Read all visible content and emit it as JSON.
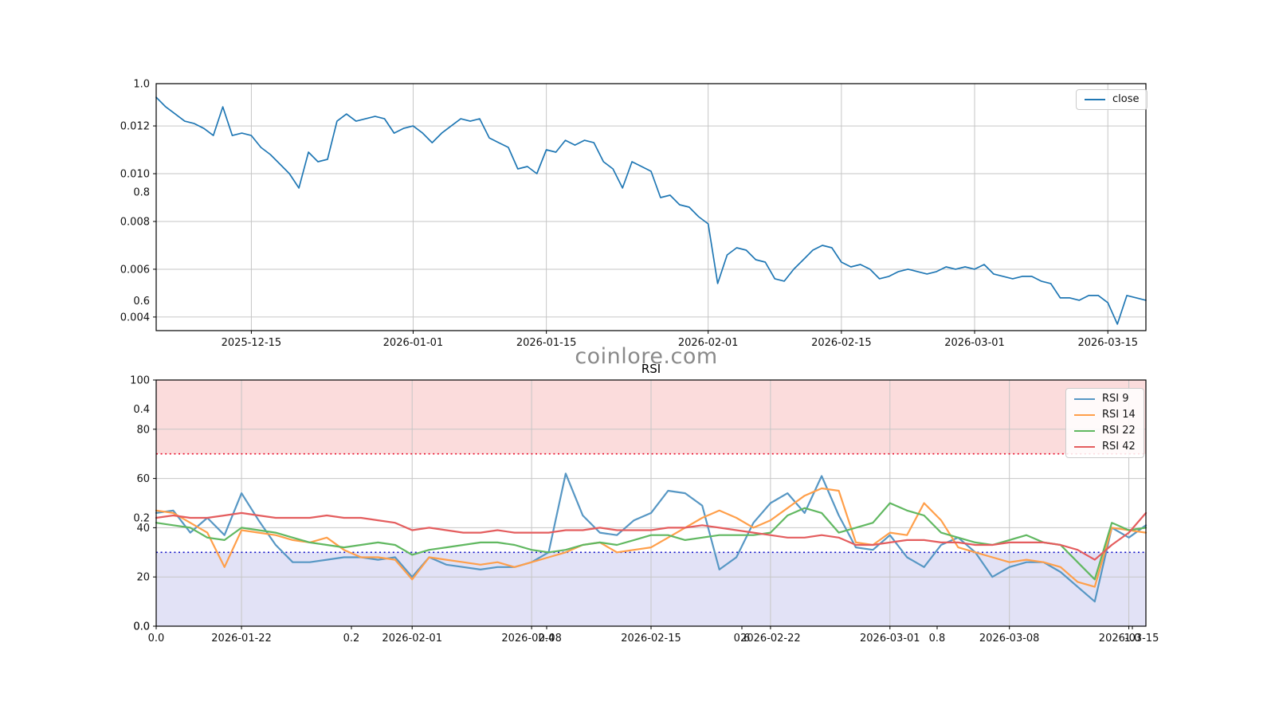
{
  "figure": {
    "watermark": "coinlore.com",
    "background": "#ffffff"
  },
  "parent_axis": {
    "x_tick_labels": [
      "0.0",
      "0.2",
      "0.4",
      "0.6",
      "0.8",
      "1.0"
    ],
    "y_tick_labels": [
      "0.0",
      "0.2",
      "0.4",
      "0.6",
      "0.8",
      "1.0"
    ]
  },
  "chart_data": [
    {
      "id": "price",
      "type": "line",
      "title": "",
      "legend_position": "upper right",
      "grid": true,
      "x_domain": [
        0,
        104
      ],
      "ylim": [
        0.00343,
        0.01377
      ],
      "x_tick_dates": [
        {
          "i": 10,
          "label": "2025-12-15"
        },
        {
          "i": 27,
          "label": "2026-01-01"
        },
        {
          "i": 41,
          "label": "2026-01-15"
        },
        {
          "i": 58,
          "label": "2026-02-01"
        },
        {
          "i": 72,
          "label": "2026-02-15"
        },
        {
          "i": 86,
          "label": "2026-03-01"
        },
        {
          "i": 100,
          "label": "2026-03-15"
        }
      ],
      "y_ticks": [
        {
          "v": 0.004,
          "label": "0.004"
        },
        {
          "v": 0.006,
          "label": "0.006"
        },
        {
          "v": 0.008,
          "label": "0.008"
        },
        {
          "v": 0.01,
          "label": "0.010"
        },
        {
          "v": 0.012,
          "label": "0.012"
        }
      ],
      "series": [
        {
          "name": "close",
          "color": "#1f77b4",
          "values": [
            0.0132,
            0.0128,
            0.0125,
            0.0122,
            0.0121,
            0.0119,
            0.0116,
            0.0128,
            0.0116,
            0.0117,
            0.0116,
            0.0111,
            0.0108,
            0.0104,
            0.01,
            0.0094,
            0.0109,
            0.0105,
            0.0106,
            0.0122,
            0.0125,
            0.0122,
            0.0123,
            0.0124,
            0.0123,
            0.0117,
            0.0119,
            0.012,
            0.0117,
            0.0113,
            0.0117,
            0.012,
            0.0123,
            0.0122,
            0.0123,
            0.0115,
            0.0113,
            0.0111,
            0.0102,
            0.0103,
            0.01,
            0.011,
            0.0109,
            0.0114,
            0.0112,
            0.0114,
            0.0113,
            0.0105,
            0.0102,
            0.0094,
            0.0105,
            0.0103,
            0.0101,
            0.009,
            0.0091,
            0.0087,
            0.0086,
            0.0082,
            0.0079,
            0.0054,
            0.0066,
            0.0069,
            0.0068,
            0.0064,
            0.0063,
            0.0056,
            0.0055,
            0.006,
            0.0064,
            0.0068,
            0.007,
            0.0069,
            0.0063,
            0.0061,
            0.0062,
            0.006,
            0.0056,
            0.0057,
            0.0059,
            0.006,
            0.0059,
            0.0058,
            0.0059,
            0.0061,
            0.006,
            0.0061,
            0.006,
            0.0062,
            0.0058,
            0.0057,
            0.0056,
            0.0057,
            0.0057,
            0.0055,
            0.0054,
            0.0048,
            0.0048,
            0.0047,
            0.0049,
            0.0049,
            0.0046,
            0.0037,
            0.0049,
            0.0048,
            0.0047
          ]
        }
      ]
    },
    {
      "id": "rsi",
      "type": "line",
      "title": "RSI",
      "legend_position": "upper right",
      "grid": true,
      "x_domain": [
        0,
        58
      ],
      "ylim": [
        0,
        100
      ],
      "x_tick_dates": [
        {
          "i": 5,
          "label": "2026-01-22"
        },
        {
          "i": 15,
          "label": "2026-02-01"
        },
        {
          "i": 22,
          "label": "2026-02-08"
        },
        {
          "i": 29,
          "label": "2026-02-15"
        },
        {
          "i": 36,
          "label": "2026-02-22"
        },
        {
          "i": 43,
          "label": "2026-03-01"
        },
        {
          "i": 50,
          "label": "2026-03-08"
        },
        {
          "i": 57,
          "label": "2026-03-15"
        }
      ],
      "y_ticks": [
        {
          "v": 0,
          "label": "0.0"
        },
        {
          "v": 20,
          "label": "20"
        },
        {
          "v": 40,
          "label": "40"
        },
        {
          "v": 60,
          "label": "60"
        },
        {
          "v": 80,
          "label": "80"
        },
        {
          "v": 100,
          "label": "100"
        }
      ],
      "bands": [
        {
          "from": 70,
          "to": 100,
          "color": "#fbdcdc",
          "meaning": "overbought"
        },
        {
          "from": 0,
          "to": 30,
          "color": "#e2e2f6",
          "meaning": "oversold"
        }
      ],
      "hlines": [
        {
          "v": 70,
          "color": "#e8112d",
          "style": "dotted"
        },
        {
          "v": 30,
          "color": "#1414c8",
          "style": "dotted"
        }
      ],
      "series": [
        {
          "name": "RSI 9",
          "color": "#5797c4",
          "values": [
            46,
            47,
            38,
            44,
            37,
            54,
            43,
            33,
            26,
            26,
            27,
            28,
            28,
            27,
            28,
            20,
            28,
            25,
            24,
            23,
            24,
            24,
            26,
            30,
            62,
            45,
            38,
            37,
            43,
            46,
            55,
            54,
            49,
            23,
            28,
            42,
            50,
            54,
            46,
            61,
            45,
            32,
            31,
            37,
            28,
            24,
            33,
            36,
            30,
            20,
            24,
            26,
            26,
            22,
            16,
            10,
            40,
            36,
            41
          ]
        },
        {
          "name": "RSI 14",
          "color": "#ff9f4a",
          "values": [
            47,
            46,
            42,
            38,
            24,
            39,
            38,
            37,
            35,
            34,
            36,
            31,
            28,
            28,
            27,
            19,
            28,
            27,
            26,
            25,
            26,
            24,
            26,
            28,
            30,
            33,
            34,
            30,
            31,
            32,
            36,
            40,
            44,
            47,
            44,
            40,
            43,
            48,
            53,
            56,
            55,
            34,
            33,
            38,
            37,
            50,
            43,
            32,
            30,
            28,
            26,
            27,
            26,
            24,
            18,
            16,
            40,
            39,
            38
          ]
        },
        {
          "name": "RSI 22",
          "color": "#61b861",
          "values": [
            42,
            41,
            40,
            36,
            35,
            40,
            39,
            38,
            36,
            34,
            33,
            32,
            33,
            34,
            33,
            29,
            31,
            32,
            33,
            34,
            34,
            33,
            31,
            30,
            31,
            33,
            34,
            33,
            35,
            37,
            37,
            35,
            36,
            37,
            37,
            37,
            38,
            45,
            48,
            46,
            38,
            40,
            42,
            50,
            47,
            45,
            38,
            36,
            34,
            33,
            35,
            37,
            34,
            33,
            26,
            19,
            42,
            39,
            40
          ]
        },
        {
          "name": "RSI 42",
          "color": "#e45d5e",
          "values": [
            44,
            45,
            44,
            44,
            45,
            46,
            45,
            44,
            44,
            44,
            45,
            44,
            44,
            43,
            42,
            39,
            40,
            39,
            38,
            38,
            39,
            38,
            38,
            38,
            39,
            39,
            40,
            39,
            39,
            39,
            40,
            40,
            41,
            40,
            39,
            38,
            37,
            36,
            36,
            37,
            36,
            33,
            33,
            34,
            35,
            35,
            34,
            34,
            33,
            33,
            34,
            34,
            34,
            33,
            31,
            27,
            33,
            38,
            46
          ]
        }
      ]
    }
  ]
}
